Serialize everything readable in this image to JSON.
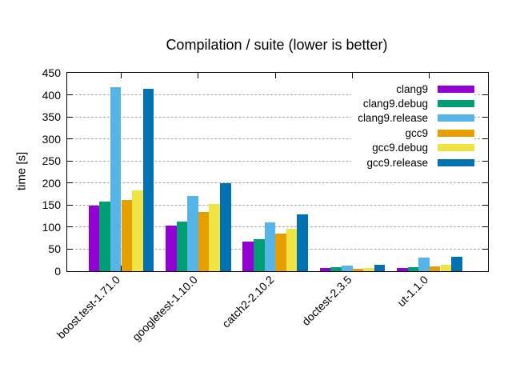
{
  "chart_data": {
    "type": "bar",
    "title": "Compilation / suite (lower is better)",
    "xlabel": "",
    "ylabel": "time [s]",
    "ylim": [
      0,
      450
    ],
    "yticks": [
      0,
      50,
      100,
      150,
      200,
      250,
      300,
      350,
      400,
      450
    ],
    "grid": true,
    "grid_color": "#a6a6a6",
    "legend_position": "top-right",
    "legend_opaque": true,
    "background_color": "#ffffff",
    "categories": [
      "boost.test-1.71.0",
      "googletest-1.10.0",
      "catch2-2.10.2",
      "doctest-2.3.5",
      "ut-1.1.0"
    ],
    "series": [
      {
        "name": "clang9",
        "color": "#9400D3",
        "values": [
          148,
          104,
          68,
          7,
          8
        ]
      },
      {
        "name": "clang9.debug",
        "color": "#009E73",
        "values": [
          158,
          113,
          72,
          9,
          10
        ]
      },
      {
        "name": "clang9.release",
        "color": "#56B4E9",
        "values": [
          417,
          171,
          110,
          13,
          31
        ]
      },
      {
        "name": "gcc9",
        "color": "#E69F00",
        "values": [
          161,
          134,
          85,
          6,
          11
        ]
      },
      {
        "name": "gcc9.debug",
        "color": "#F0E442",
        "values": [
          184,
          152,
          96,
          8,
          14
        ]
      },
      {
        "name": "gcc9.release",
        "color": "#0072B2",
        "values": [
          414,
          200,
          129,
          14,
          33
        ]
      }
    ]
  }
}
